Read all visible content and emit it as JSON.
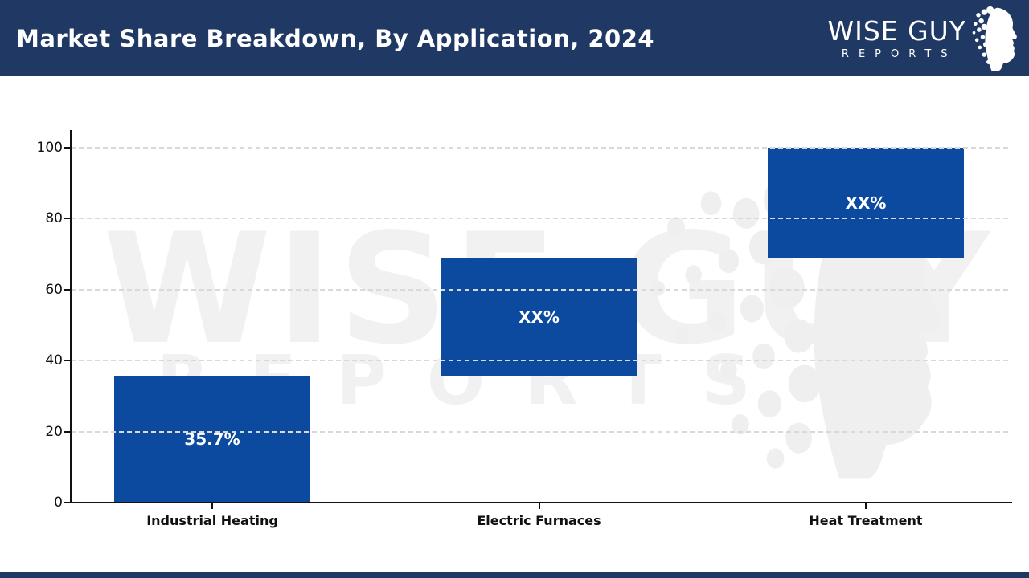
{
  "header": {
    "title": "Market Share Breakdown, By Application, 2024",
    "bg_color": "#1F3864",
    "logo": {
      "line1": "WISE GUY",
      "line2": "REPORTS"
    }
  },
  "watermark": {
    "line1": "WISE GUY",
    "line2": "REPORTS"
  },
  "footer": {
    "bg_color": "#1F3864"
  },
  "chart_data": {
    "type": "bar",
    "variant": "waterfall",
    "title": "Market Share Breakdown, By Application, 2024",
    "categories": [
      "Industrial Heating",
      "Electric Furnaces",
      "Heat Treatment"
    ],
    "segments": [
      {
        "category": "Industrial Heating",
        "start": 0,
        "end": 35.7,
        "label": "35.7%"
      },
      {
        "category": "Electric Furnaces",
        "start": 35.7,
        "end": 69,
        "label": "XX%"
      },
      {
        "category": "Heat Treatment",
        "start": 69,
        "end": 100,
        "label": "XX%"
      }
    ],
    "yticks": [
      0,
      20,
      40,
      60,
      80,
      100
    ],
    "ylim": [
      0,
      105
    ],
    "xlabel": "",
    "ylabel": "",
    "legend": "none",
    "grid": "horizontal-dashed",
    "bar_color": "#0B4A9F",
    "bar_label_color": "#FFFFFF",
    "gridline_color": "#D9D9D9",
    "axis_color": "#111111"
  }
}
